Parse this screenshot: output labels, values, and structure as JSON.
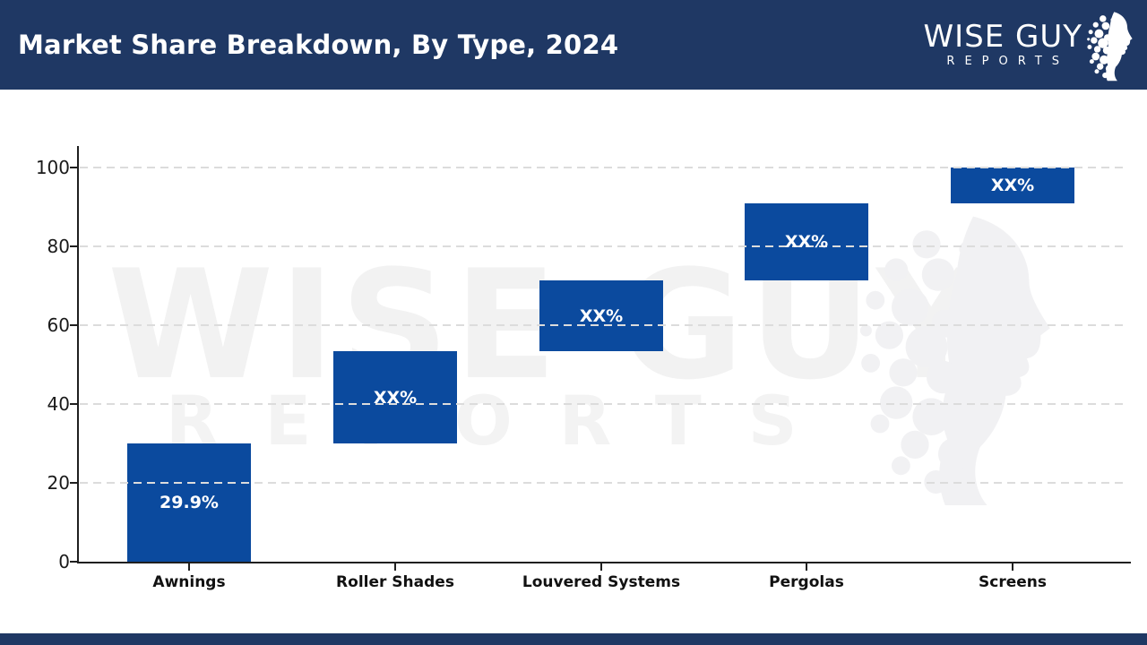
{
  "header": {
    "title": "Market Share Breakdown, By Type, 2024",
    "background_color": "#1f3864",
    "logo": {
      "line1": "WISE GUY",
      "line2": "REPORTS"
    }
  },
  "watermark": {
    "line1": "WISE GUY",
    "line2": "REPORTS",
    "color": "#f2f2f2"
  },
  "chart_data": {
    "type": "bar",
    "subtype": "floating-waterfall",
    "title": "Market Share Breakdown, By Type, 2024",
    "categories": [
      "Awnings",
      "Roller Shades",
      "Louvered Systems",
      "Pergolas",
      "Screens"
    ],
    "segments": [
      {
        "category": "Awnings",
        "start": 0,
        "end": 29.9,
        "label": "29.9%"
      },
      {
        "category": "Roller Shades",
        "start": 29.9,
        "end": 53.4,
        "label": "XX%"
      },
      {
        "category": "Louvered Systems",
        "start": 53.4,
        "end": 71.3,
        "label": "XX%"
      },
      {
        "category": "Pergolas",
        "start": 71.3,
        "end": 90.9,
        "label": "XX%"
      },
      {
        "category": "Screens",
        "start": 90.9,
        "end": 100,
        "label": "XX%"
      }
    ],
    "xlabel": "",
    "ylabel": "",
    "ylim": [
      0,
      100
    ],
    "yticks": [
      0,
      20,
      40,
      60,
      80,
      100
    ],
    "grid": "horizontal-dashed-above-bars",
    "bar_color": "#0b4a9e",
    "bar_label_color": "#ffffff",
    "axis_color": "#1f1f1f",
    "grid_color": "#dcdcdc",
    "legend": "none"
  },
  "footer": {
    "background_color": "#1f3864"
  }
}
